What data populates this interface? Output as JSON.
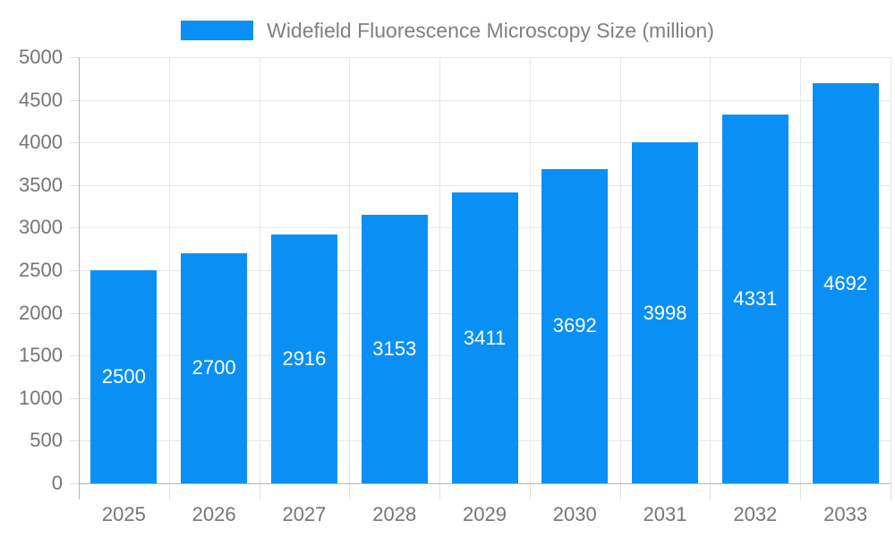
{
  "legend": {
    "label": "Widefield Fluorescence Microscopy Size (million)"
  },
  "colors": {
    "bar": "#0a90f4",
    "grid": "#e6e6e6",
    "tick": "#e0e0e0",
    "axis": "#b3b3b3",
    "axis_text": "#757575",
    "legend_text": "#808080",
    "value_text": "#ffffff",
    "background": "#ffffff"
  },
  "chart_data": {
    "type": "bar",
    "title": "Widefield Fluorescence Microscopy Size (million)",
    "categories": [
      "2025",
      "2026",
      "2027",
      "2028",
      "2029",
      "2030",
      "2031",
      "2032",
      "2033"
    ],
    "series": [
      {
        "name": "Widefield Fluorescence Microscopy Size (million)",
        "values": [
          2500,
          2700,
          2916,
          3153,
          3411,
          3692,
          3998,
          4331,
          4692
        ]
      }
    ],
    "xlabel": "",
    "ylabel": "",
    "ylim": [
      0,
      5000
    ],
    "ytick_step": 500,
    "ytick_labels": [
      "0",
      "500",
      "1000",
      "1500",
      "2000",
      "2500",
      "3000",
      "3500",
      "4000",
      "4500",
      "5000"
    ],
    "grid": "horizontal-and-vertical",
    "legend_position": "top-center",
    "value_labels": "inside-center"
  }
}
